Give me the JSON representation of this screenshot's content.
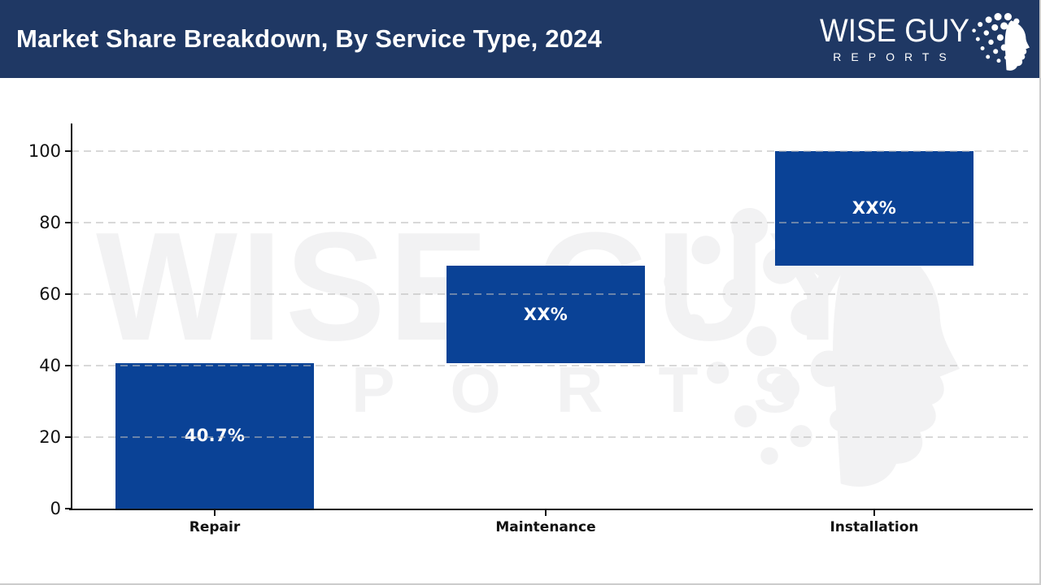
{
  "header": {
    "title": "Market Share Breakdown, By Service Type, 2024",
    "bg_color": "#1f3864",
    "logo": {
      "name": "WISE GUY REPORTS",
      "line1": "WISE GUY",
      "line2": "REPORTS"
    }
  },
  "watermark": {
    "line1": "WISE GUY",
    "line2": "REPORTS"
  },
  "chart_data": {
    "type": "bar",
    "subtype": "stacked-waterfall",
    "title": "Market Share Breakdown, By Service Type, 2024",
    "categories": [
      "Repair",
      "Maintenance",
      "Installation"
    ],
    "segments": [
      {
        "category": "Repair",
        "start": 0,
        "end": 40.7,
        "label": "40.7%"
      },
      {
        "category": "Maintenance",
        "start": 40.7,
        "end": 68,
        "label": "XX%"
      },
      {
        "category": "Installation",
        "start": 68,
        "end": 100,
        "label": "XX%"
      }
    ],
    "ylim": [
      0,
      100
    ],
    "yticks": [
      0,
      20,
      40,
      60,
      80,
      100
    ],
    "xlabel": "",
    "ylabel": "",
    "grid": "horizontal-dashed",
    "legend": "none",
    "bar_color": "#0a4296",
    "value_label_color": "#ffffff",
    "axis_color": "#111111",
    "grid_color": "#d9d9d9",
    "tick_label_color": "#111111",
    "watermark_color": "#f2f2f3",
    "page_border_color": "#cccccc"
  }
}
